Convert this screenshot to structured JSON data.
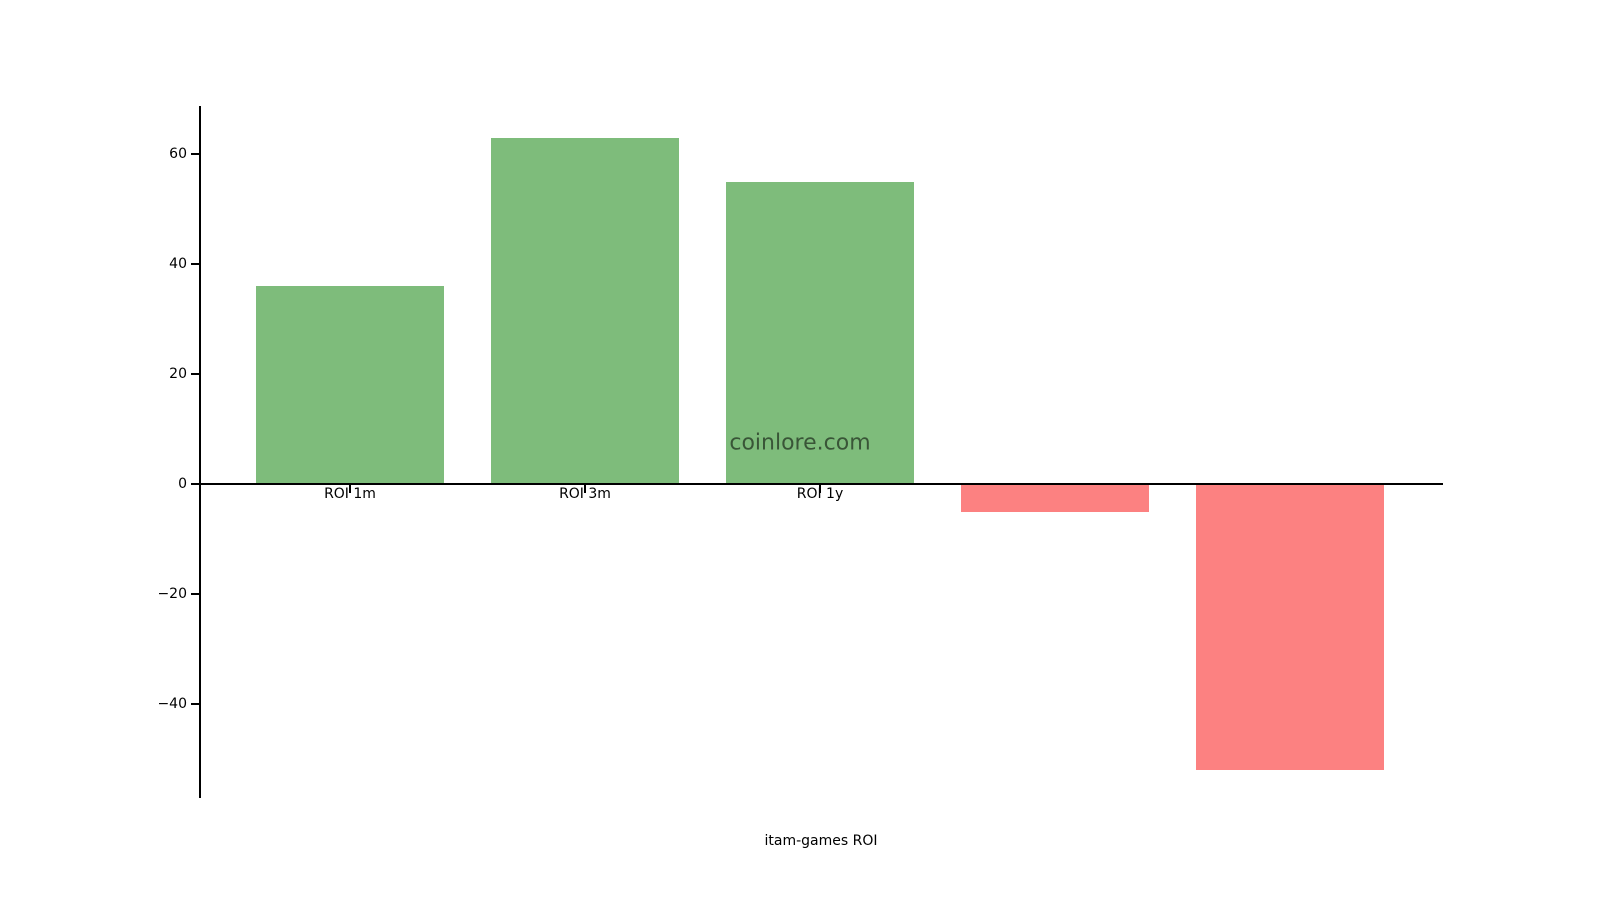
{
  "chart_data": {
    "type": "bar",
    "title": "itam-games ROI",
    "watermark": "coinlore.com",
    "categories": [
      "ROI 1m",
      "ROI 3m",
      "ROI 1y",
      "",
      ""
    ],
    "values": [
      36,
      63,
      55,
      -5,
      -52
    ],
    "xlabel": "",
    "ylabel": "",
    "y_ticks": [
      {
        "value": 60,
        "label": "60"
      },
      {
        "value": 40,
        "label": "40"
      },
      {
        "value": 20,
        "label": "20"
      },
      {
        "value": 0,
        "label": "0"
      },
      {
        "value": -20,
        "label": "−20"
      },
      {
        "value": -40,
        "label": "−40"
      }
    ],
    "ylim": [
      -57,
      68.5
    ],
    "grid": false,
    "legend": null,
    "colors": {
      "positive_bar": "#7ebc7b",
      "negative_bar": "#fc8181",
      "axis": "#000000",
      "tick_text": "#000000",
      "title_text": "#000000",
      "watermark_text": "rgba(0,0,0,0.55)",
      "background": "#ffffff"
    }
  }
}
